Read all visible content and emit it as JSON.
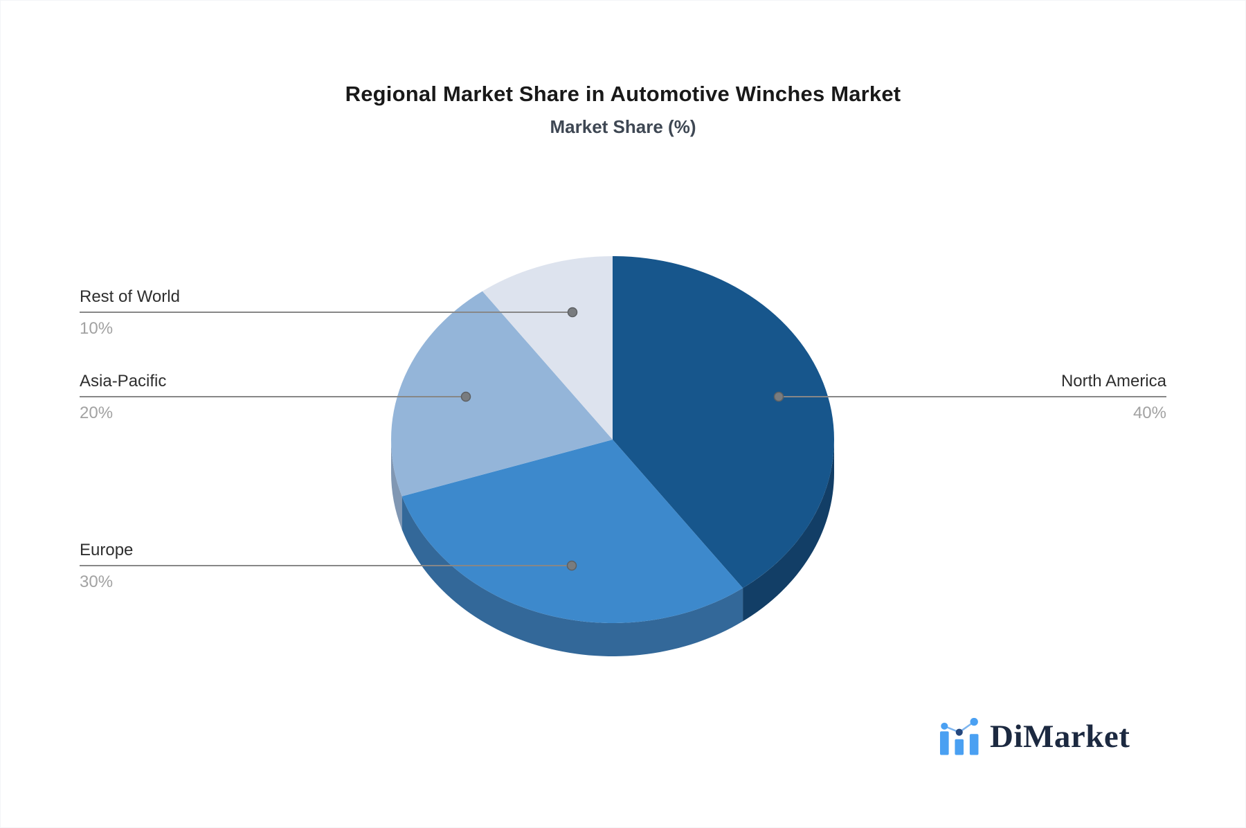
{
  "header": {
    "title": "Regional Market Share in Automotive Winches Market",
    "subtitle": "Market Share (%)"
  },
  "chart_data": {
    "type": "pie",
    "style": "3d",
    "title": "Regional Market Share in Automotive Winches Market",
    "subtitle": "Market Share (%)",
    "unit": "%",
    "start_angle": "top",
    "direction": "clockwise",
    "labels_as_callouts": true,
    "slices": [
      {
        "label": "North America",
        "value": 40,
        "pct_label": "40%",
        "color": "#17568c",
        "side_color": "#123e66"
      },
      {
        "label": "Europe",
        "value": 30,
        "pct_label": "30%",
        "color": "#3d89cc",
        "side_color": "#336899"
      },
      {
        "label": "Asia-Pacific",
        "value": 20,
        "pct_label": "20%",
        "color": "#94b5d9",
        "side_color": "#8097b3"
      },
      {
        "label": "Rest of World",
        "value": 10,
        "pct_label": "10%",
        "color": "#dde3ee",
        "side_color": "#c6cdda"
      }
    ],
    "leader_line_color": "#878787",
    "leader_dot_color": "#797c7f"
  },
  "branding": {
    "logo_text": "DiMarket",
    "logo_icon": "bar-line-chart-icon",
    "accent_blue": "#4aa0f2",
    "navy": "#1c2940"
  }
}
